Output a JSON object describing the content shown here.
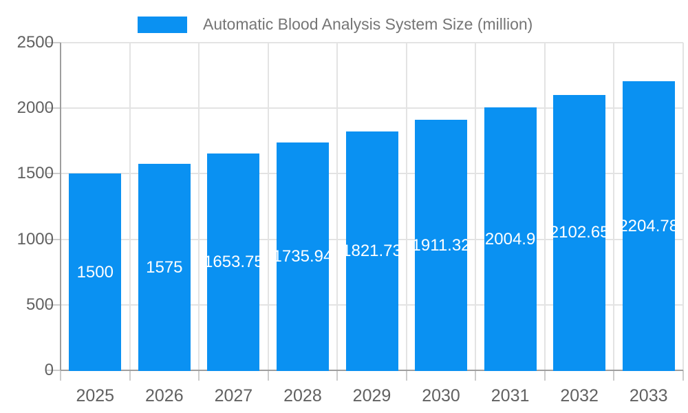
{
  "chart_data": {
    "type": "bar",
    "title": "Automatic Blood Analysis System Size (million)",
    "categories": [
      "2025",
      "2026",
      "2027",
      "2028",
      "2029",
      "2030",
      "2031",
      "2032",
      "2033"
    ],
    "series": [
      {
        "name": "Automatic Blood Analysis System Size (million)",
        "values": [
          1500,
          1575,
          1653.75,
          1735.94,
          1821.73,
          1911.32,
          2004.9,
          2102.65,
          2204.78
        ]
      }
    ],
    "value_labels": [
      "1500",
      "1575",
      "1653.75",
      "1735.94",
      "1821.73",
      "1911.32",
      "2004.9",
      "2102.65",
      "2204.78"
    ],
    "xlabel": "",
    "ylabel": "",
    "ylim": [
      0,
      2500
    ],
    "y_ticks": [
      "0",
      "500",
      "1000",
      "1500",
      "2000",
      "2500"
    ],
    "grid": true,
    "legend_position": "top"
  },
  "colors": {
    "bar": "#0a91f2",
    "value_label": "#ffffff",
    "tick_label": "#616161",
    "legend_text": "#757575",
    "grid": "#e3e3e3",
    "axis": "#9e9e9e",
    "tick": "#cccccc",
    "background": "#ffffff"
  }
}
